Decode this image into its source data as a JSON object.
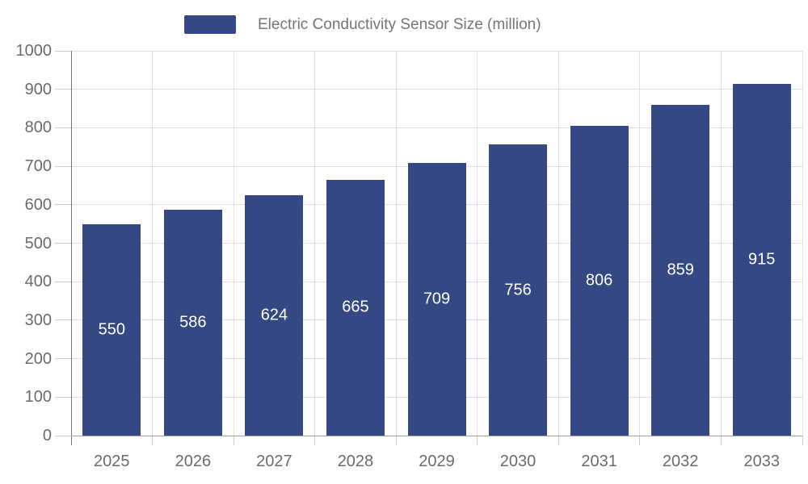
{
  "legend": {
    "label": "Electric Conductivity Sensor Size (million)"
  },
  "chart_data": {
    "type": "bar",
    "title": "",
    "categories": [
      "2025",
      "2026",
      "2027",
      "2028",
      "2029",
      "2030",
      "2031",
      "2032",
      "2033"
    ],
    "series": [
      {
        "name": "Electric Conductivity Sensor Size (million)",
        "values": [
          550,
          586,
          624,
          665,
          709,
          756,
          806,
          859,
          915
        ]
      }
    ],
    "value_labels_shown": true,
    "xlabel": "",
    "ylabel": "",
    "ylim": [
      0,
      1000
    ],
    "yticks": [
      0,
      100,
      200,
      300,
      400,
      500,
      600,
      700,
      800,
      900,
      1000
    ],
    "grid": true,
    "legend_position": "top-center",
    "colors": {
      "bar": "#344884",
      "value_label": "#FFFFFF",
      "legend_text": "#757575",
      "axis_text": "#6B6B6B",
      "gridline": "#E0E0E0",
      "y_axis_line": "#777777",
      "x_axis_line": "#9E9E9E",
      "tick": "#CCCCCC"
    }
  }
}
